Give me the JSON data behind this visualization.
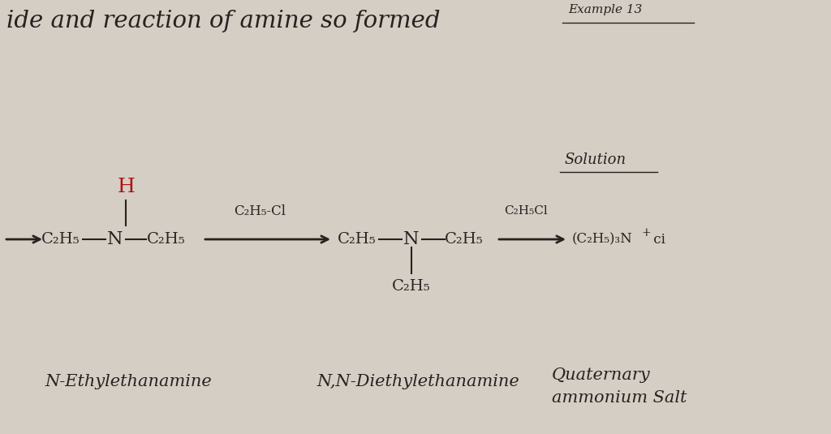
{
  "bg_color": "#d4cec5",
  "text_color": "#2a2020",
  "red_color": "#b01010",
  "title_text": "ide and reaction of amine so formed",
  "title_fontsize": 22,
  "example_text": "Example 13",
  "solution_text": "Solution",
  "label1": "N-Ethylethanamine",
  "label2": "N,N-Diethylethanamine",
  "label3": "Quaternary",
  "label4": "ammonium Salt"
}
